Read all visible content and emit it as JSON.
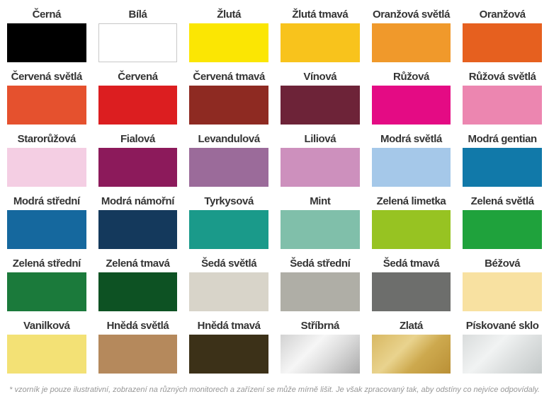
{
  "palette": {
    "swatches": [
      {
        "label": "Černá",
        "color": "#000000"
      },
      {
        "label": "Bílá",
        "color": "#FFFFFF",
        "border": true
      },
      {
        "label": "Žlutá",
        "color": "#FBE603"
      },
      {
        "label": "Žlutá tmavá",
        "color": "#F8C31C"
      },
      {
        "label": "Oranžová světlá",
        "color": "#F0992B"
      },
      {
        "label": "Oranžová",
        "color": "#E6601F"
      },
      {
        "label": "Červená světlá",
        "color": "#E5512E"
      },
      {
        "label": "Červená",
        "color": "#DC1E20"
      },
      {
        "label": "Červená tmavá",
        "color": "#8E2A22"
      },
      {
        "label": "Vínová",
        "color": "#6D2338"
      },
      {
        "label": "Růžová",
        "color": "#E40B84"
      },
      {
        "label": "Růžová světlá",
        "color": "#EC86B0"
      },
      {
        "label": "Starorůžová",
        "color": "#F4CEE3"
      },
      {
        "label": "Fialová",
        "color": "#8C1A5B"
      },
      {
        "label": "Levandulová",
        "color": "#9B6B9A"
      },
      {
        "label": "Liliová",
        "color": "#CD90BD"
      },
      {
        "label": "Modrá světlá",
        "color": "#A5C8E9"
      },
      {
        "label": "Modrá gentian",
        "color": "#1179A9"
      },
      {
        "label": "Modrá střední",
        "color": "#15689E"
      },
      {
        "label": "Modrá námořní",
        "color": "#14395C"
      },
      {
        "label": "Tyrkysová",
        "color": "#1A9A8A"
      },
      {
        "label": "Mint",
        "color": "#80BFAA"
      },
      {
        "label": "Zelená limetka",
        "color": "#97C322"
      },
      {
        "label": "Zelená světlá",
        "color": "#1FA23C"
      },
      {
        "label": "Zelená střední",
        "color": "#1B7A3B"
      },
      {
        "label": "Zelená tmavá",
        "color": "#0D5223"
      },
      {
        "label": "Šedá světlá",
        "color": "#D8D4C9"
      },
      {
        "label": "Šedá střední",
        "color": "#AFAEA6"
      },
      {
        "label": "Šedá tmavá",
        "color": "#6D6E6C"
      },
      {
        "label": "Béžová",
        "color": "#F8E1A1"
      },
      {
        "label": "Vanilková",
        "color": "#F3E175"
      },
      {
        "label": "Hnědá světlá",
        "color": "#B5895C"
      },
      {
        "label": "Hnědá tmavá",
        "color": "#3C3118"
      },
      {
        "label": "Stříbrná",
        "gradient": [
          "#D2D2D2",
          "#F6F6F6",
          "#DCDCDC",
          "#ABABAB"
        ]
      },
      {
        "label": "Zlatá",
        "gradient": [
          "#D8B862",
          "#E9D38E",
          "#CDA94E",
          "#BA9036"
        ]
      },
      {
        "label": "Pískované sklo",
        "gradient": [
          "#D9DCDC",
          "#F1F3F3",
          "#DEE1E1",
          "#C4C9C9"
        ]
      }
    ]
  },
  "footer": {
    "note": "* vzorník je pouze ilustrativní, zobrazení na různých monitorech a zařízení se může mírně lišit. Je však zpracovaný tak, aby odstíny co nejvíce odpovídaly."
  },
  "colors": {
    "background": "#FFFFFF",
    "label_text": "#343434",
    "footer_text": "#979797",
    "white_swatch_border": "#C8C8C8"
  }
}
